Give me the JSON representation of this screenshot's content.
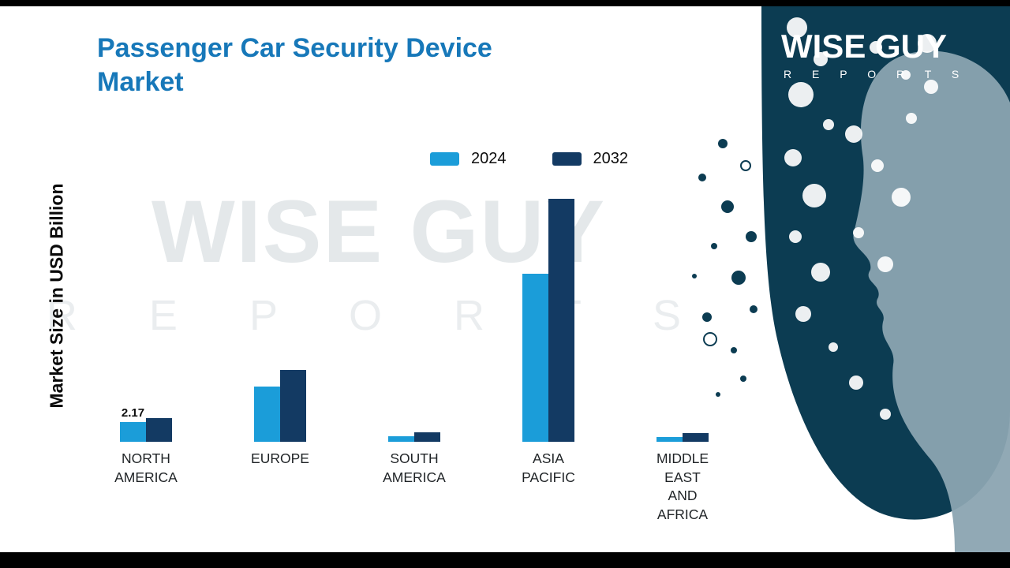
{
  "page": {
    "title": "Passenger Car Security Device\nMarket"
  },
  "brand": {
    "logo_name": "WISE GUY",
    "logo_sub": "R E P O R T S"
  },
  "watermark": {
    "line1": "WISE GUY",
    "line2": "R E P O R T S"
  },
  "colors": {
    "title_blue": "#1778b9",
    "panel_teal": "#0c3c52",
    "series_2024": "#1b9dd9",
    "series_2032": "#133a63",
    "watermark_gray": "#e4e8ea",
    "border_black": "#000000"
  },
  "chart_data": {
    "type": "bar",
    "title": "Passenger Car Security Device Market",
    "xlabel": "",
    "ylabel": "Market Size in USD Billion",
    "categories": [
      "NORTH AMERICA",
      "EUROPE",
      "SOUTH AMERICA",
      "ASIA PACIFIC",
      "MIDDLE EAST AND AFRICA"
    ],
    "series": [
      {
        "name": "2024",
        "color": "#1b9dd9",
        "values": [
          2.17,
          6.1,
          0.62,
          18.5,
          0.55
        ]
      },
      {
        "name": "2032",
        "color": "#133a63",
        "values": [
          2.65,
          7.9,
          1.05,
          26.8,
          0.92
        ]
      }
    ],
    "data_labels": [
      {
        "series": "2024",
        "category": "NORTH AMERICA",
        "label": "2.17"
      }
    ],
    "ylim": [
      0,
      30
    ],
    "grid": false,
    "legend_position": "top-center",
    "units": "USD Billion"
  }
}
